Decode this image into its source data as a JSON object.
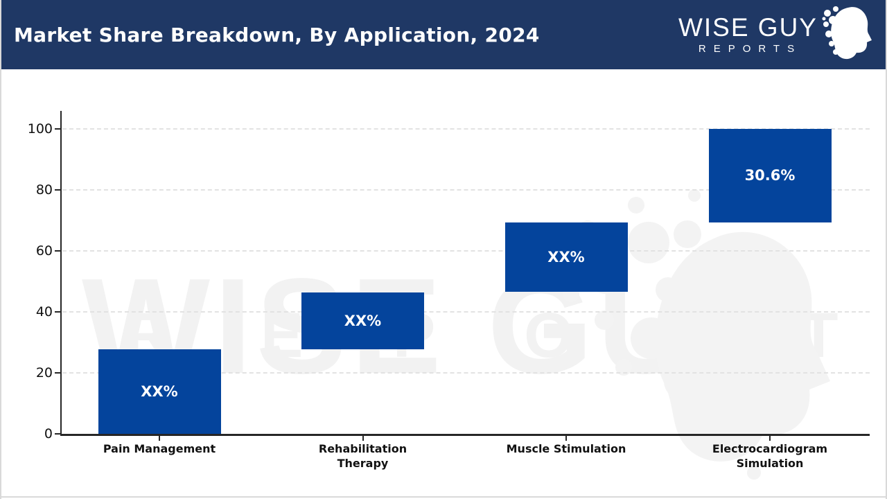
{
  "header": {
    "title": "Market Share Breakdown, By Application, 2024",
    "logo_name": "WISE GUY",
    "logo_sub": "REPORTS",
    "bg_color": "#1f3865"
  },
  "watermark": {
    "line1": "WISE GU",
    "line2": "R E P O R T S"
  },
  "chart_data": {
    "type": "bar",
    "subtype": "floating-segment-waterfall",
    "title": "Market Share Breakdown, By Application, 2024",
    "categories": [
      "Pain Management",
      "Rehabilitation\nTherapy",
      "Muscle Stimulation",
      "Electrocardiogram\nSimulation"
    ],
    "segments": [
      {
        "from": 0,
        "to": 27.7,
        "label": "XX%"
      },
      {
        "from": 27.7,
        "to": 46.4,
        "label": "XX%"
      },
      {
        "from": 46.6,
        "to": 69.3,
        "label": "XX%"
      },
      {
        "from": 69.4,
        "to": 100,
        "label": "30.6%"
      }
    ],
    "y_ticks": [
      0,
      20,
      40,
      60,
      80,
      100
    ],
    "ylim": [
      0,
      106
    ],
    "xlabel": "",
    "ylabel": "",
    "legend": "none",
    "grid": "horizontal-dashed",
    "bar_color": "#04449c",
    "bar_label_color": "#ffffff",
    "axis_color": "#262626",
    "gridline_color": "#e2e2e2"
  }
}
